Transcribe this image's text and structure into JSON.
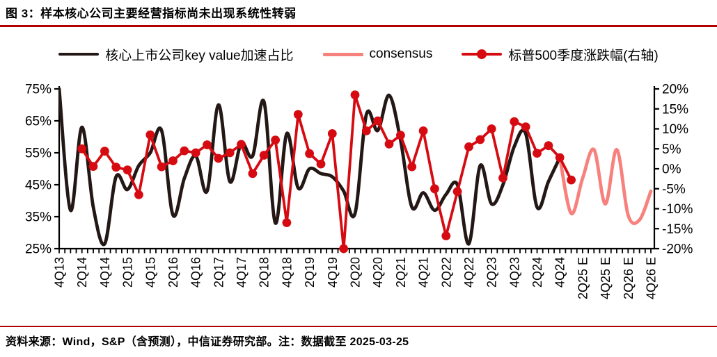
{
  "title": "图 3：样本核心公司主要经营指标尚未出现系统性转弱",
  "footer": {
    "text": "资料来源：Wind，S&P（含预测），中信证券研究部。注：数据截至 2025-03-25"
  },
  "colors": {
    "rule_red": "#b00000",
    "series_black": "#231815",
    "series_pink": "#f7817c",
    "series_red": "#d60b12",
    "axis_black": "#000000"
  },
  "legend": {
    "items": [
      {
        "label": "核心上市公司key value加速占比",
        "color": "#231815",
        "marker": false
      },
      {
        "label": "consensus",
        "color": "#f7817c",
        "marker": false
      },
      {
        "label": "标普500季度涨跌幅(右轴)",
        "color": "#d60b12",
        "marker": true
      }
    ]
  },
  "chart_data": {
    "type": "line",
    "categories": [
      "4Q13",
      "1Q14",
      "2Q14",
      "3Q14",
      "4Q14",
      "1Q15",
      "2Q15",
      "3Q15",
      "4Q15",
      "1Q16",
      "2Q16",
      "3Q16",
      "4Q16",
      "1Q17",
      "2Q17",
      "3Q17",
      "4Q17",
      "1Q18",
      "2Q18",
      "3Q18",
      "4Q18",
      "1Q19",
      "2Q19",
      "3Q19",
      "4Q19",
      "1Q20",
      "2Q20",
      "3Q20",
      "4Q20",
      "1Q21",
      "2Q21",
      "3Q21",
      "4Q21",
      "1Q22",
      "2Q22",
      "3Q22",
      "4Q22",
      "1Q23",
      "2Q23",
      "3Q23",
      "4Q23",
      "1Q24",
      "2Q24",
      "3Q24",
      "4Q24",
      "1Q25",
      "2Q25",
      "3Q25",
      "4Q25",
      "1Q26",
      "2Q26",
      "3Q26",
      "4Q26"
    ],
    "x_axis": {
      "tick_labels": [
        "4Q13",
        "2Q14",
        "4Q14",
        "2Q15",
        "4Q15",
        "2Q16",
        "4Q16",
        "2Q17",
        "4Q17",
        "2Q18",
        "4Q18",
        "2Q19",
        "4Q19",
        "2Q20",
        "4Q20",
        "2Q21",
        "4Q21",
        "2Q22",
        "4Q22",
        "2Q23",
        "4Q23",
        "2Q24",
        "4Q24",
        "2Q25 E",
        "4Q25 E",
        "2Q26 E",
        "4Q26 E"
      ]
    },
    "left_axis": {
      "min": 25,
      "max": 75,
      "tick_labels": [
        "75%",
        "65%",
        "55%",
        "45%",
        "35%",
        "25%"
      ]
    },
    "right_axis": {
      "min": -20,
      "max": 20,
      "tick_labels": [
        "20%",
        "15%",
        "10%",
        "5%",
        "0%",
        "-5%",
        "-10%",
        "-15%",
        "-20%"
      ]
    },
    "series": [
      {
        "name": "核心上市公司key value加速占比",
        "axis": "left",
        "line": "smooth",
        "marker": false,
        "color": "#231815",
        "start": "4Q13",
        "values": [
          75,
          37,
          63,
          38,
          26.5,
          47.5,
          43.5,
          51,
          55,
          62,
          35.5,
          47,
          54,
          43,
          70,
          46,
          58,
          54,
          71,
          33,
          61,
          44,
          50,
          48.5,
          47.5,
          43,
          36,
          67,
          62,
          73,
          59,
          38,
          42.5,
          37,
          42,
          45,
          26.5,
          51,
          39,
          45,
          57,
          61,
          38,
          46,
          53.5
        ]
      },
      {
        "name": "consensus",
        "axis": "left",
        "line": "smooth",
        "marker": false,
        "color": "#f7817c",
        "start": "4Q24",
        "values": [
          53.5,
          36,
          47,
          56,
          39,
          56,
          35.5,
          34,
          43
        ]
      },
      {
        "name": "标普500季度涨跌幅(右轴)",
        "axis": "right",
        "line": "straight",
        "marker": true,
        "color": "#d60b12",
        "start": "2Q14",
        "values": [
          5,
          0.6,
          4.4,
          0.4,
          -0.3,
          -6.5,
          8.5,
          0.5,
          2,
          4.5,
          4,
          6,
          2.6,
          4,
          6.1,
          -1.2,
          3.4,
          7.2,
          -13.5,
          13.6,
          3.8,
          1.2,
          8.8,
          -20,
          18.5,
          9.5,
          12,
          6.2,
          8.4,
          0.5,
          9.5,
          -5,
          -16.8,
          -5.7,
          5.5,
          7.3,
          10,
          -2.3,
          11.8,
          10.5,
          3.9,
          5.8,
          2.8,
          -2.8
        ]
      }
    ]
  }
}
